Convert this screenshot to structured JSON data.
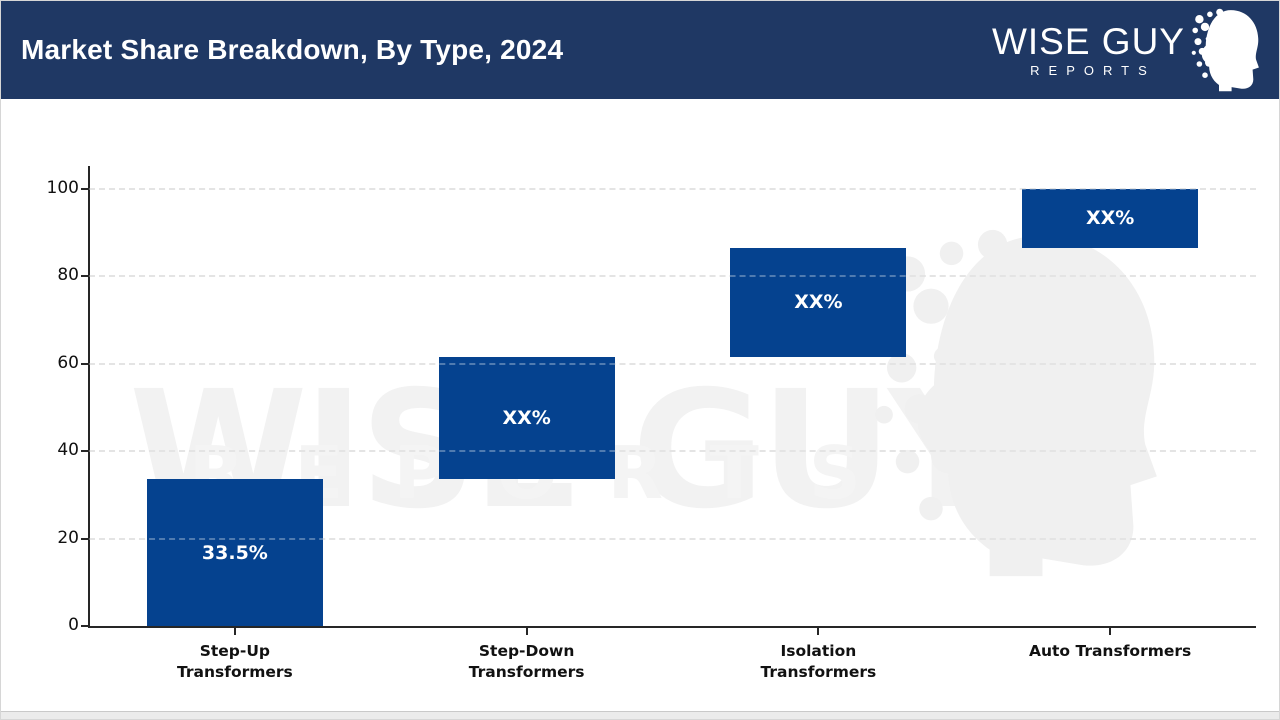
{
  "header": {
    "title": "Market Share Breakdown, By Type, 2024",
    "logo": {
      "line1": "WISE GUY",
      "line2": "REPORTS"
    }
  },
  "watermark": {
    "line1": "WISE GUY",
    "line2": "REPORTS"
  },
  "colors": {
    "header_bg": "#1F3864",
    "bar": "#05428F",
    "grid": "#D8D8D8",
    "axis": "#262626",
    "bar_label": "#FFFFFF",
    "watermark": "#F2F2F2"
  },
  "chart_data": {
    "type": "bar",
    "subtype": "waterfall",
    "title": "Market Share Breakdown, By Type, 2024",
    "categories": [
      "Step-Up Transformers",
      "Step-Down Transformers",
      "Isolation Transformers",
      "Auto Transformers"
    ],
    "category_label_lines": [
      [
        "Step-Up",
        "Transformers"
      ],
      [
        "Step-Down",
        "Transformers"
      ],
      [
        "Isolation",
        "Transformers"
      ],
      [
        "Auto Transformers"
      ]
    ],
    "bars": [
      {
        "category": "Step-Up Transformers",
        "start": 0,
        "end": 33.5,
        "label": "33.5%"
      },
      {
        "category": "Step-Down Transformers",
        "start": 33.5,
        "end": 61.5,
        "label": "XX%"
      },
      {
        "category": "Isolation Transformers",
        "start": 61.5,
        "end": 86.5,
        "label": "XX%"
      },
      {
        "category": "Auto Transformers",
        "start": 86.5,
        "end": 100,
        "label": "XX%"
      }
    ],
    "yticks": [
      0,
      20,
      40,
      60,
      80,
      100
    ],
    "ylim": [
      0,
      105
    ],
    "xlabel": "",
    "ylabel": "",
    "grid": "dashed-horizontal",
    "legend": "none"
  }
}
